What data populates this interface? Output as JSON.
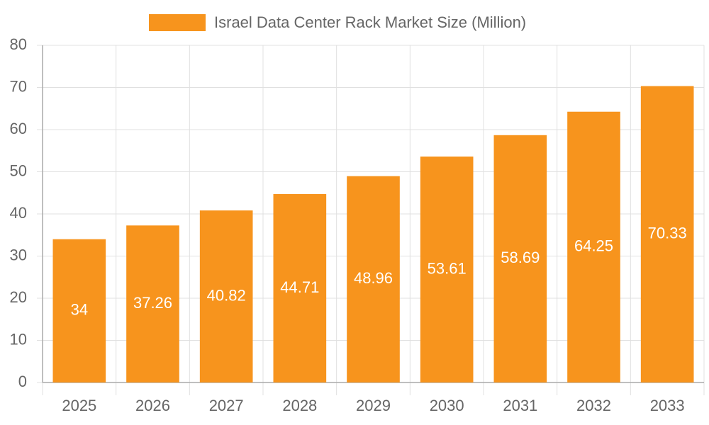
{
  "chart_data": {
    "type": "bar",
    "categories": [
      "2025",
      "2026",
      "2027",
      "2028",
      "2029",
      "2030",
      "2031",
      "2032",
      "2033"
    ],
    "series": [
      {
        "name": "Israel Data Center Rack Market Size (Million)",
        "color": "#f7941d",
        "values": [
          34,
          37.26,
          40.82,
          44.71,
          48.96,
          53.61,
          58.69,
          64.25,
          70.33
        ]
      }
    ],
    "ylim": [
      0,
      80
    ],
    "yticks": [
      0,
      10,
      20,
      30,
      40,
      50,
      60,
      70,
      80
    ],
    "grid": true,
    "legend": "top"
  }
}
